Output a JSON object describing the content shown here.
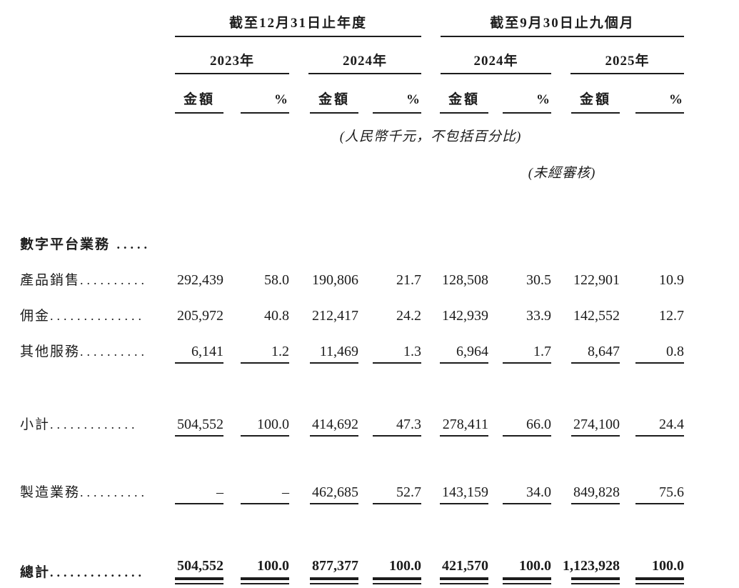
{
  "header": {
    "groups": [
      {
        "title": "截至12月31日止年度",
        "years": [
          "2023年",
          "2024年"
        ]
      },
      {
        "title": "截至9月30日止九個月",
        "years": [
          "2024年",
          "2025年"
        ]
      }
    ],
    "amount_label": "金額",
    "percent_label": "%"
  },
  "notes": {
    "currency": "(人民幣千元，不包括百分比)",
    "unaudited": "(未經審核)"
  },
  "rows": [
    {
      "label": "數字平台業務",
      "leader": " .....",
      "bold": true,
      "cells": [
        "",
        "",
        "",
        "",
        "",
        "",
        "",
        ""
      ]
    },
    {
      "label": "產品銷售",
      "leader": "..........",
      "cells": [
        "292,439",
        "58.0",
        "190,806",
        "21.7",
        "128,508",
        "30.5",
        "122,901",
        "10.9"
      ]
    },
    {
      "label": "佣金",
      "leader": "..............",
      "cells": [
        "205,972",
        "40.8",
        "212,417",
        "24.2",
        "142,939",
        "33.9",
        "142,552",
        "12.7"
      ]
    },
    {
      "label": "其他服務",
      "leader": "..........",
      "underline": true,
      "cells": [
        "6,141",
        "1.2",
        "11,469",
        "1.3",
        "6,964",
        "1.7",
        "8,647",
        "0.8"
      ]
    },
    {
      "label": "小計",
      "leader": ".............",
      "underline": true,
      "cells": [
        "504,552",
        "100.0",
        "414,692",
        "47.3",
        "278,411",
        "66.0",
        "274,100",
        "24.4"
      ]
    },
    {
      "label": "製造業務",
      "leader": "..........",
      "underline": true,
      "cells": [
        "–",
        "–",
        "462,685",
        "52.7",
        "143,159",
        "34.0",
        "849,828",
        "75.6"
      ]
    },
    {
      "label": "總計",
      "leader": "..............",
      "bold": true,
      "double_underline": true,
      "cells": [
        "504,552",
        "100.0",
        "877,377",
        "100.0",
        "421,570",
        "100.0",
        "1,123,928",
        "100.0"
      ]
    }
  ],
  "colors": {
    "text": "#1c1c1c",
    "rule": "#1c1c1c",
    "background": "#ffffff"
  }
}
